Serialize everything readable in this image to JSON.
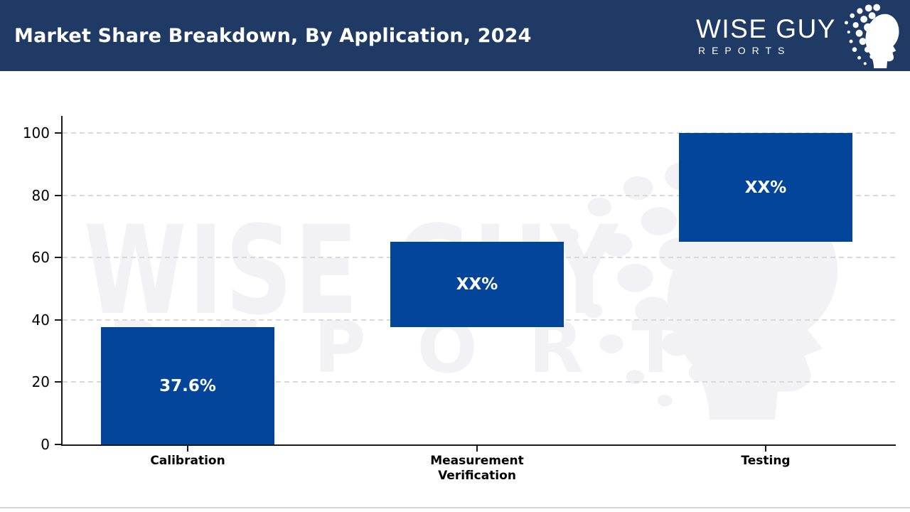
{
  "header": {
    "title": "Market Share Breakdown, By Application, 2024",
    "bg_color": "#203A66",
    "logo": {
      "wordmark": "WISE GUY",
      "subtext": "REPORTS"
    }
  },
  "watermark": {
    "wordmark": "WISE GUY",
    "subtext": "REPORTS"
  },
  "chart_data": {
    "type": "bar",
    "subtype": "floating-waterfall",
    "title": "Market Share Breakdown, By Application, 2024",
    "categories": [
      {
        "lines": [
          "Calibration"
        ]
      },
      {
        "lines": [
          "Measurement",
          "Verification"
        ]
      },
      {
        "lines": [
          "Testing"
        ]
      }
    ],
    "segments": [
      {
        "category": "Calibration",
        "start": 0,
        "end": 37.6,
        "label": "37.6%"
      },
      {
        "category": "Measurement Verification",
        "start": 37.6,
        "end": 65,
        "label": "XX%"
      },
      {
        "category": "Testing",
        "start": 65,
        "end": 100,
        "label": "XX%"
      }
    ],
    "ylim": [
      0,
      105
    ],
    "yticks": [
      0,
      20,
      40,
      60,
      80,
      100
    ],
    "grid": {
      "horizontal": true,
      "style": "dashed",
      "color": "#D9D9D9"
    },
    "bar_color": "#04459C",
    "bar_label_color": "#FFFFFF",
    "axis_color": "#1A1A1A",
    "legend": "none"
  }
}
